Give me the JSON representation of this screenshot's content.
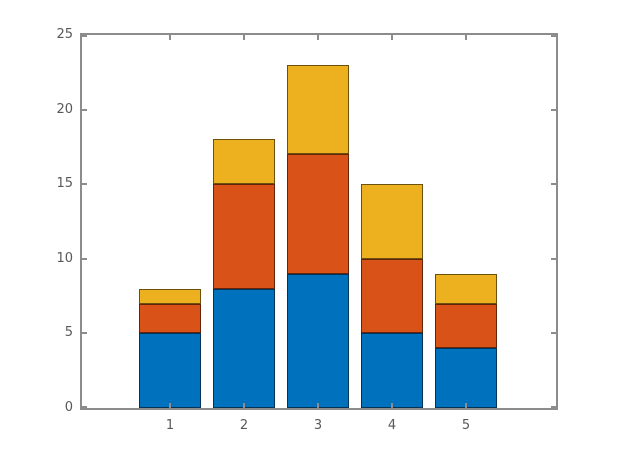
{
  "figure": {
    "background": "#ffffff",
    "axis_color": "#8c8c8c",
    "tick_label_color": "#595959",
    "bar_edge_color": "rgba(0,0,0,0.55)"
  },
  "chart_data": {
    "type": "bar",
    "stacked": true,
    "title": "",
    "xlabel": "",
    "ylabel": "",
    "categories": [
      "1",
      "2",
      "3",
      "4",
      "5"
    ],
    "series": [
      {
        "name": "bottom-segment",
        "color": "#0072BD",
        "values": [
          5,
          8,
          9,
          5,
          4
        ]
      },
      {
        "name": "middle-segment",
        "color": "#D95319",
        "values": [
          2,
          7,
          8,
          5,
          3
        ]
      },
      {
        "name": "top-segment",
        "color": "#EDB120",
        "values": [
          1,
          3,
          6,
          5,
          2
        ]
      }
    ],
    "stack_totals": [
      8,
      18,
      23,
      15,
      9
    ],
    "yticks": [
      "0",
      "5",
      "10",
      "15",
      "20",
      "25"
    ],
    "ylim": [
      0,
      25
    ],
    "grid": false,
    "legend": null
  }
}
